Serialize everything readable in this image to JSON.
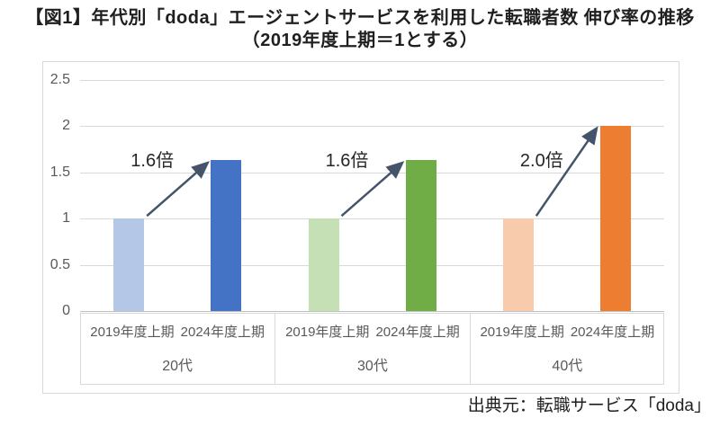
{
  "title": {
    "line1": "【図1】年代別「doda」エージェントサービスを利用した転職者数 伸び率の推移",
    "line2": "（2019年度上期＝1とする）"
  },
  "source": "出典元：転職サービス「doda」",
  "chart_data": {
    "type": "bar",
    "title": "【図1】年代別「doda」エージェントサービスを利用した転職者数 伸び率の推移（2019年度上期＝1とする）",
    "categories": [
      "20代",
      "30代",
      "40代"
    ],
    "series": [
      {
        "name": "2019年度上期",
        "values": [
          1,
          1,
          1
        ],
        "colors": [
          "#B4C7E7",
          "#C5E0B4",
          "#F8CBAD"
        ]
      },
      {
        "name": "2024年度上期",
        "values": [
          1.63,
          1.63,
          2.0
        ],
        "colors": [
          "#4472C4",
          "#70AD47",
          "#ED7D31"
        ]
      }
    ],
    "annotations": [
      "1.6倍",
      "1.6倍",
      "2.0倍"
    ],
    "xlabel": "",
    "ylabel": "",
    "ylim": [
      0,
      2.5
    ],
    "yticks": [
      0,
      0.5,
      1,
      1.5,
      2,
      2.5
    ],
    "grid": true,
    "legend_position": "none",
    "arrow_color": "#44546A",
    "gridline_color": "#D9D9D9",
    "axis_line_color": "#C0C0C0",
    "tick_label_color": "#595959"
  }
}
